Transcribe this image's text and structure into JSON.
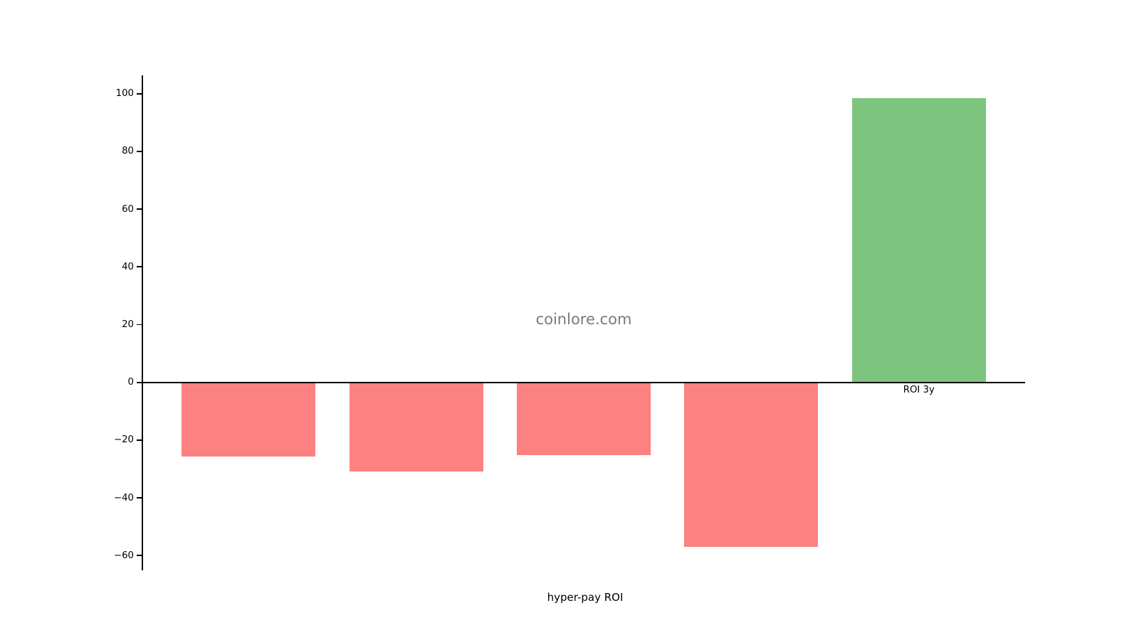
{
  "figure": {
    "background": "#ffffff"
  },
  "chart_data": {
    "type": "bar",
    "title": "",
    "xlabel": "hyper-pay ROI",
    "watermark": "coinlore.com",
    "categories": [
      "",
      "",
      "",
      "",
      "ROI 3y"
    ],
    "values": [
      -25.6,
      -30.8,
      -25.3,
      -57.0,
      98.4
    ],
    "yticks": [
      100,
      80,
      60,
      40,
      20,
      0,
      -20,
      -40,
      -60
    ],
    "ylim": [
      -65,
      106
    ],
    "grid": false,
    "legend": false,
    "colors": {
      "negative_bar": "#fc8181",
      "positive_bar": "#7dc57e",
      "axis": "#000000",
      "tick_text": "#000000",
      "watermark": "#7a7a7a"
    }
  }
}
